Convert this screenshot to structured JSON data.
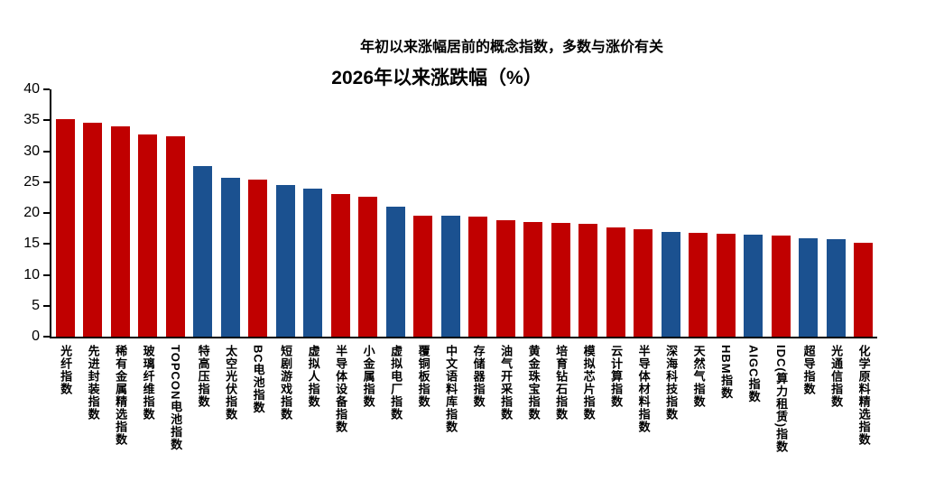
{
  "subtitle": "年初以来涨幅居前的概念指数，多数与涨价有关",
  "chart_data": {
    "type": "bar",
    "title": "2026年以来涨跌幅（%）",
    "xlabel": "",
    "ylabel": "",
    "ylim": [
      0,
      40
    ],
    "yticks": [
      0,
      5,
      10,
      15,
      20,
      25,
      30,
      35,
      40
    ],
    "grid": false,
    "legend": "none",
    "categories": [
      "光纤指数",
      "先进封装指数",
      "稀有金属精选指数",
      "玻璃纤维指数",
      "TOPCON电池指数",
      "特高压指数",
      "太空光伏指数",
      "BC电池指数",
      "短剧游戏指数",
      "虚拟人指数",
      "半导体设备指数",
      "小金属指数",
      "虚拟电厂指数",
      "覆铜板指数",
      "中文语料库指数",
      "存储器指数",
      "油气开采指数",
      "黄金珠宝指数",
      "培育钻石指数",
      "模拟芯片指数",
      "云计算指数",
      "半导体材料指数",
      "深海科技指数",
      "天然气指数",
      "HBM指数",
      "AIGC指数",
      "IDC(算力租赁)指数",
      "超导指数",
      "光通信指数",
      "化学原料精选指数"
    ],
    "values": [
      35.2,
      34.6,
      34.0,
      32.7,
      32.4,
      27.6,
      25.7,
      25.4,
      24.5,
      24.0,
      23.0,
      22.6,
      21.0,
      19.6,
      19.5,
      19.4,
      18.8,
      18.5,
      18.4,
      18.3,
      17.7,
      17.4,
      16.9,
      16.8,
      16.6,
      16.5,
      16.3,
      15.9,
      15.7,
      15.2
    ],
    "bar_color_keys": [
      "red",
      "red",
      "red",
      "red",
      "red",
      "blue",
      "blue",
      "red",
      "blue",
      "blue",
      "red",
      "red",
      "blue",
      "red",
      "blue",
      "red",
      "red",
      "red",
      "red",
      "red",
      "red",
      "red",
      "blue",
      "red",
      "red",
      "blue",
      "red",
      "blue",
      "blue",
      "red"
    ],
    "palette": {
      "red": "#C00000",
      "blue": "#1B5190"
    },
    "axis_color": "#000000",
    "text_color": "#000000"
  }
}
